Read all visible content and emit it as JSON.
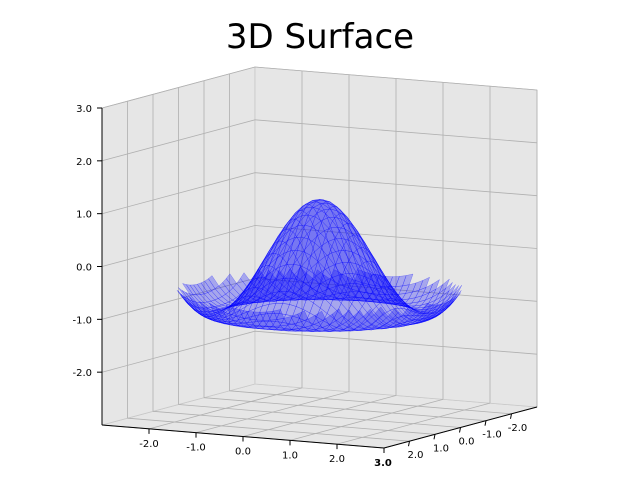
{
  "chart_data": {
    "type": "surface3d",
    "title": "3D Surface",
    "xlabel": "",
    "ylabel": "",
    "zlabel": "",
    "x_ticks": [
      "-2.0",
      "-1.0",
      "0.0",
      "1.0",
      "2.0",
      "3.0"
    ],
    "y_ticks": [
      "2.0",
      "1.0",
      "0.0",
      "-1.0",
      "-2.0"
    ],
    "z_ticks": [
      "-2.0",
      "-1.0",
      "0.0",
      "1.0",
      "2.0",
      "3.0"
    ],
    "xlim": [
      -3,
      3
    ],
    "ylim": [
      -3,
      3
    ],
    "zlim": [
      -3,
      3
    ],
    "grid": true,
    "surface": {
      "function": "z = cos(sqrt(x^2 + y^2) * 1.6) (radially symmetric ripple)",
      "description": "Central dome peaking near z=1.1 surrounded by a ring trough near z=-1.0, outer rim rising back toward z=1.0",
      "r_profile": [
        {
          "r": 0.0,
          "z": 1.1
        },
        {
          "r": 0.5,
          "z": 1.0
        },
        {
          "r": 1.0,
          "z": 0.1
        },
        {
          "r": 1.5,
          "z": -0.8
        },
        {
          "r": 2.0,
          "z": -1.0
        },
        {
          "r": 2.5,
          "z": 0.2
        },
        {
          "r": 3.0,
          "z": 1.0
        }
      ],
      "color": "#0000ff",
      "alpha": 0.4
    }
  },
  "colors": {
    "pane": "#e6e6e6",
    "grid": "#b0b0b0",
    "surface": "#0000ff"
  }
}
